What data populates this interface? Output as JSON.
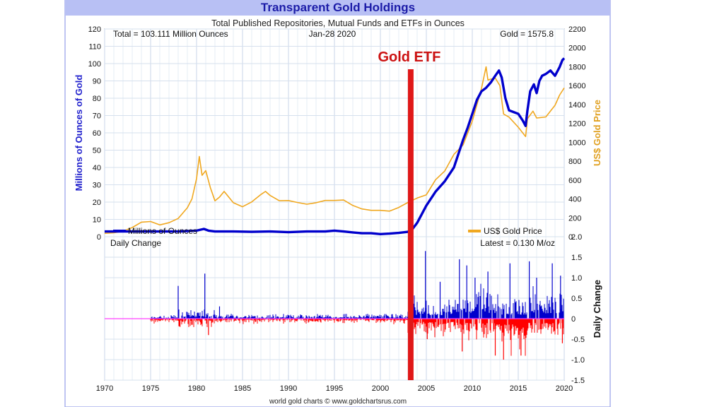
{
  "chart_data": [
    {
      "type": "line",
      "title": "Transparent Gold Holdings",
      "subtitle": "Total Published Repositories, Mutual Funds and ETFs in Ounces",
      "annotations": {
        "total": "Total = 103.111 Million Ounces",
        "date": "Jan-28  2020",
        "gold_price": "Gold = 1575.8",
        "marker_label": "Gold ETF",
        "marker_x": 2003.3
      },
      "ylabel": "Millions of Ounces of Gold",
      "y2label": "US$ Gold Price",
      "ylim": [
        0,
        120
      ],
      "y2lim": [
        0,
        2200
      ],
      "xlim": [
        1970,
        2020
      ],
      "y_ticks": [
        "0",
        "10",
        "20",
        "30",
        "40",
        "50",
        "60",
        "70",
        "80",
        "90",
        "100",
        "110",
        "120"
      ],
      "y2_ticks": [
        "0",
        "200",
        "400",
        "600",
        "800",
        "1000",
        "1200",
        "1400",
        "1600",
        "1800",
        "2000",
        "2200"
      ],
      "grid": true,
      "legend_position": "bottom",
      "series": [
        {
          "name": "Millions of Ounces",
          "color": "#0000cc",
          "axis": "left",
          "x": [
            1970,
            1975,
            1978,
            1980,
            1980.8,
            1981.3,
            1982,
            1984,
            1986,
            1988,
            1990,
            1992,
            1994,
            1995,
            1996,
            1997,
            1998,
            1999,
            2000,
            2001,
            2002,
            2003,
            2003.5,
            2004,
            2005,
            2006,
            2007,
            2008,
            2009,
            2009.5,
            2010,
            2010.5,
            2011,
            2011.5,
            2012,
            2012.5,
            2012.9,
            2013.2,
            2013.6,
            2014,
            2014.5,
            2015,
            2015.5,
            2015.8,
            2016,
            2016.3,
            2016.7,
            2017,
            2017.3,
            2017.6,
            2018,
            2018.5,
            2019,
            2019.5,
            2019.8,
            2020
          ],
          "y": [
            3,
            3,
            3,
            3.5,
            4.5,
            3.5,
            3,
            3,
            2.8,
            3,
            2.6,
            3,
            3,
            3.5,
            3,
            2.5,
            2,
            2,
            1.5,
            1.8,
            2.2,
            2.8,
            4.5,
            8,
            18,
            26,
            32,
            40,
            56,
            63,
            71,
            79,
            84,
            86,
            89,
            93,
            96,
            92,
            80,
            73,
            72,
            71,
            67,
            64,
            73,
            84,
            88,
            83,
            90,
            93,
            94,
            96,
            93,
            98,
            102,
            103.1
          ]
        },
        {
          "name": "US$ Gold Price",
          "color": "#f0a820",
          "axis": "right",
          "x": [
            1970,
            1971,
            1972,
            1973,
            1974,
            1975,
            1976,
            1977,
            1978,
            1979,
            1979.5,
            1980,
            1980.3,
            1980.6,
            1981,
            1981.5,
            1982,
            1982.5,
            1983,
            1984,
            1985,
            1986,
            1987,
            1987.5,
            1988,
            1989,
            1990,
            1991,
            1992,
            1993,
            1994,
            1995,
            1996,
            1997,
            1998,
            1999,
            2000,
            2001,
            2002,
            2003,
            2004,
            2005,
            2006,
            2007,
            2008,
            2009,
            2010,
            2011,
            2011.5,
            2011.7,
            2012,
            2012.5,
            2013,
            2013.4,
            2014,
            2015,
            2015.8,
            2016,
            2016.6,
            2017,
            2018,
            2019,
            2019.5,
            2020
          ],
          "y": [
            36,
            41,
            58,
            97,
            154,
            161,
            125,
            148,
            193,
            307,
            400,
            615,
            850,
            650,
            700,
            520,
            380,
            420,
            480,
            360,
            317,
            368,
            447,
            480,
            437,
            381,
            383,
            362,
            344,
            360,
            384,
            384,
            388,
            331,
            294,
            279,
            279,
            271,
            310,
            363,
            409,
            444,
            603,
            695,
            872,
            972,
            1224,
            1571,
            1800,
            1660,
            1669,
            1680,
            1600,
            1300,
            1266,
            1160,
            1060,
            1250,
            1330,
            1257,
            1268,
            1392,
            1500,
            1575.8
          ]
        }
      ]
    },
    {
      "type": "bar",
      "title": "Daily Change",
      "annotation": "Latest = 0.130 M/oz",
      "ylabel": "Daily Change",
      "ylim": [
        -1.5,
        2.0
      ],
      "y_ticks": [
        "2.0",
        "1.5",
        "1.0",
        "0.5",
        "0",
        "-0.5",
        "-1.0",
        "-1.5"
      ],
      "x_ticks": [
        "1970",
        "1975",
        "1980",
        "1985",
        "1990",
        "1995",
        "2000",
        "2005",
        "2010",
        "2015",
        "2020"
      ],
      "positive_color": "#0000cc",
      "negative_color": "#ff0000",
      "zero_line_color": "#ff40ff",
      "bands": [
        {
          "from": 1975,
          "to": 1978,
          "pos": 0.05,
          "neg": -0.08
        },
        {
          "from": 1978,
          "to": 1982,
          "pos": 0.15,
          "neg": -0.15
        },
        {
          "from": 1982,
          "to": 2003,
          "pos": 0.08,
          "neg": -0.08
        },
        {
          "from": 2003,
          "to": 2008,
          "pos": 0.35,
          "neg": -0.3
        },
        {
          "from": 2008,
          "to": 2013,
          "pos": 0.55,
          "neg": -0.4
        },
        {
          "from": 2013,
          "to": 2016,
          "pos": 0.4,
          "neg": -0.55
        },
        {
          "from": 2016,
          "to": 2020,
          "pos": 0.5,
          "neg": -0.4
        }
      ],
      "spikes": [
        {
          "x": 1978.0,
          "y": 0.8
        },
        {
          "x": 1978.2,
          "y": -0.2
        },
        {
          "x": 1980.9,
          "y": 1.1
        },
        {
          "x": 1981.3,
          "y": -0.4
        },
        {
          "x": 1982.5,
          "y": 0.3
        },
        {
          "x": 2004.9,
          "y": 1.65
        },
        {
          "x": 2005.1,
          "y": -0.5
        },
        {
          "x": 2006.5,
          "y": 0.9
        },
        {
          "x": 2008.6,
          "y": 1.45
        },
        {
          "x": 2008.9,
          "y": -0.8
        },
        {
          "x": 2009.4,
          "y": 1.3
        },
        {
          "x": 2010.3,
          "y": 1.0
        },
        {
          "x": 2011.7,
          "y": 1.15
        },
        {
          "x": 2012.5,
          "y": -0.9
        },
        {
          "x": 2013.4,
          "y": -1.0
        },
        {
          "x": 2014.1,
          "y": 1.35
        },
        {
          "x": 2015.3,
          "y": -0.9
        },
        {
          "x": 2016.2,
          "y": 1.4
        },
        {
          "x": 2017.0,
          "y": 1.0
        },
        {
          "x": 2018.7,
          "y": 1.35
        },
        {
          "x": 2019.6,
          "y": 1.05
        },
        {
          "x": 2019.8,
          "y": -0.6
        }
      ]
    }
  ],
  "footer": "world gold charts © www.goldchartsrus.com",
  "colors": {
    "title_bar": "#b8c0f4",
    "title_text": "#1c1ca8",
    "frame": "#aab2ee",
    "marker": "#e01818",
    "marker_label": "#cc1111"
  }
}
